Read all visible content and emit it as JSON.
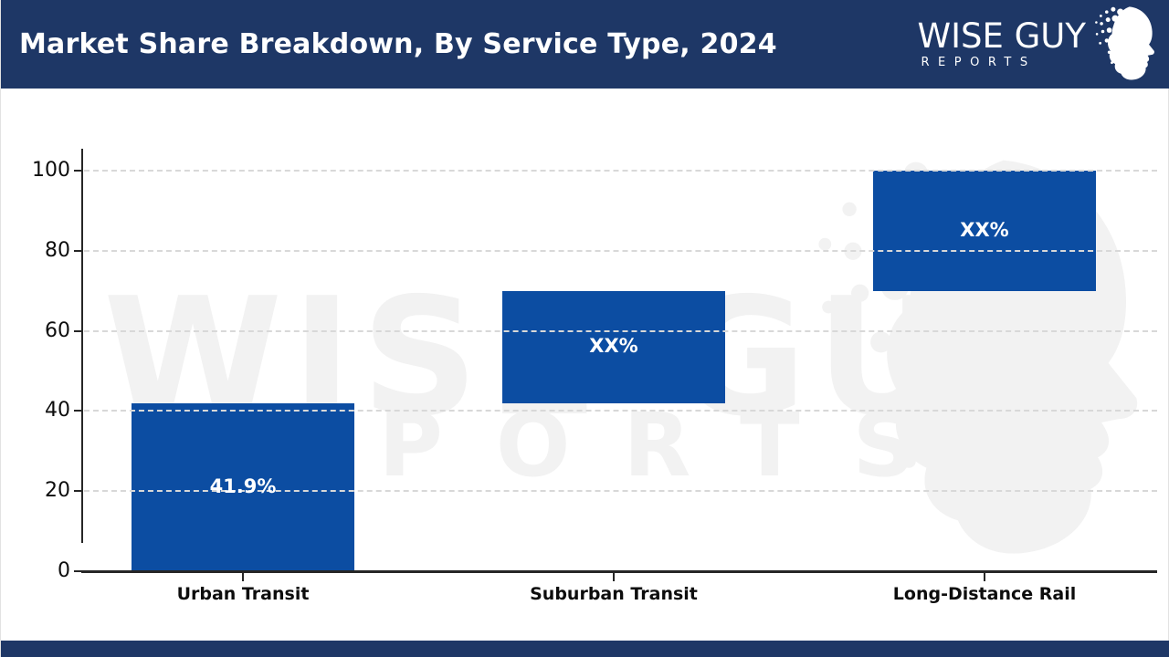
{
  "header": {
    "title": "Market Share Breakdown, By Service Type, 2024",
    "logo": {
      "line1": "WISE GUY",
      "line2": "REPORTS"
    }
  },
  "watermark": {
    "line1": "WISE GUY",
    "line2": "REPORTS"
  },
  "colors": {
    "header_navy": "#1e3766",
    "footer_navy": "#1e3766",
    "bar_blue": "#0c4da2",
    "bar_label_white": "#ffffff",
    "axis_dark": "#262626",
    "grid_gray": "#d8d8d8",
    "watermark_gray": "#f2f2f2"
  },
  "chart_data": {
    "type": "bar",
    "subtype": "floating-waterfall-segments",
    "title": "Market Share Breakdown, By Service Type, 2024",
    "categories": [
      "Urban Transit",
      "Suburban Transit",
      "Long-Distance Rail"
    ],
    "segments": [
      {
        "category": "Urban Transit",
        "start": 0,
        "end": 41.9,
        "label": "41.9%"
      },
      {
        "category": "Suburban Transit",
        "start": 41.9,
        "end": 70,
        "label": "XX%"
      },
      {
        "category": "Long-Distance Rail",
        "start": 70,
        "end": 100,
        "label": "XX%"
      }
    ],
    "xlabel": "",
    "ylabel": "",
    "ylim": [
      0,
      100
    ],
    "yticks": [
      0,
      20,
      40,
      60,
      80,
      100
    ],
    "grid": "horizontal-dashed",
    "grid_above_bars": true,
    "legend": "none"
  }
}
